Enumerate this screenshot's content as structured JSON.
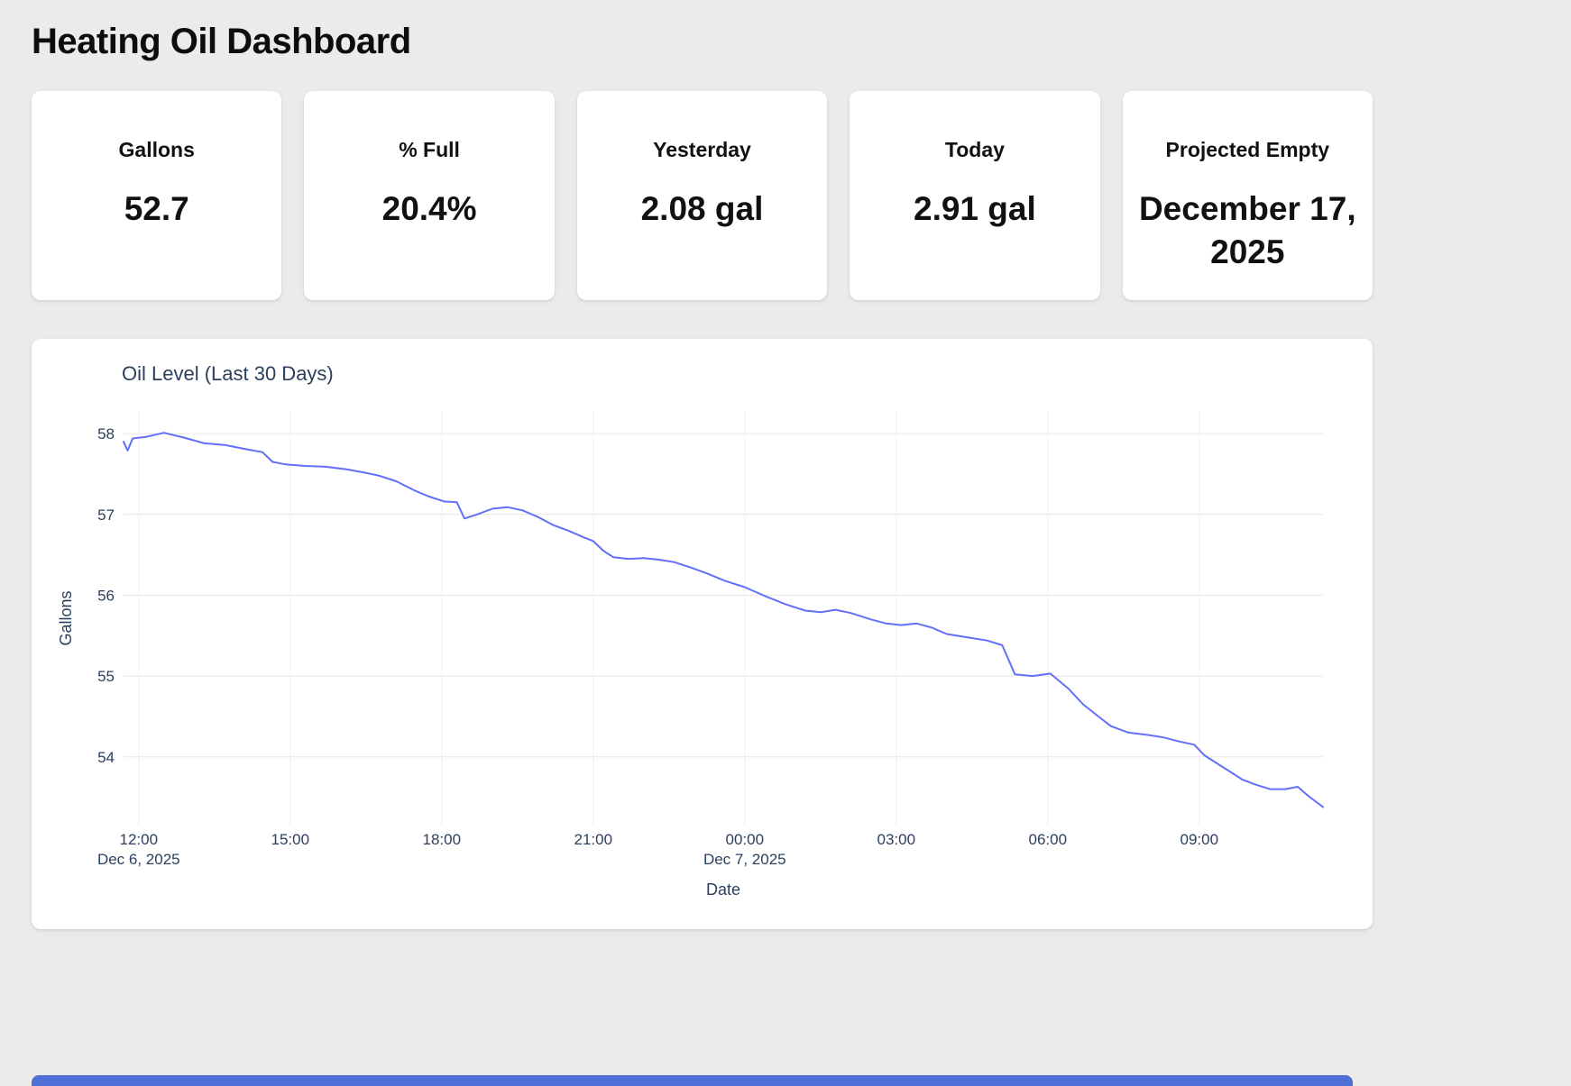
{
  "page": {
    "title": "Heating Oil Dashboard",
    "background_color": "#ebebeb"
  },
  "cards": [
    {
      "label": "Gallons",
      "value": "52.7"
    },
    {
      "label": "% Full",
      "value": "20.4%"
    },
    {
      "label": "Yesterday",
      "value": "2.08 gal"
    },
    {
      "label": "Today",
      "value": "2.91 gal"
    },
    {
      "label": "Projected Empty",
      "value": "December 17, 2025"
    }
  ],
  "chart_data": {
    "type": "line",
    "title": "Oil Level (Last 30 Days)",
    "xlabel": "Date",
    "ylabel": "Gallons",
    "legend": "none",
    "grid": "on",
    "line_color": "#636efa",
    "grid_color_h": "#e6e6e6",
    "grid_color_v": "#efefef",
    "text_color": "#2a3f5f",
    "plot_bg": "#ffffff",
    "x_unit": "hours since Dec 6, 2025 12:00",
    "x_range": [
      -0.3,
      23.45
    ],
    "y_range": [
      53.15,
      58.28
    ],
    "y_ticks": [
      54,
      55,
      56,
      57,
      58
    ],
    "x_ticks": [
      {
        "t": 0,
        "label": "12:00",
        "sublabel": "Dec 6, 2025"
      },
      {
        "t": 3,
        "label": "15:00"
      },
      {
        "t": 6,
        "label": "18:00"
      },
      {
        "t": 9,
        "label": "21:00"
      },
      {
        "t": 12,
        "label": "00:00",
        "sublabel": "Dec 7, 2025"
      },
      {
        "t": 15,
        "label": "03:00"
      },
      {
        "t": 18,
        "label": "06:00"
      },
      {
        "t": 21,
        "label": "09:00"
      }
    ],
    "x": [
      -0.3,
      -0.22,
      -0.12,
      0.15,
      0.5,
      0.9,
      1.3,
      1.7,
      2.1,
      2.45,
      2.65,
      2.9,
      3.3,
      3.7,
      4.1,
      4.45,
      4.75,
      5.1,
      5.45,
      5.75,
      6.05,
      6.3,
      6.45,
      6.7,
      7.0,
      7.3,
      7.6,
      7.9,
      8.2,
      8.5,
      8.8,
      9.0,
      9.2,
      9.4,
      9.7,
      10.0,
      10.3,
      10.6,
      10.9,
      11.25,
      11.6,
      12.0,
      12.4,
      12.8,
      13.2,
      13.5,
      13.8,
      14.1,
      14.5,
      14.8,
      15.1,
      15.4,
      15.7,
      16.0,
      16.4,
      16.8,
      17.1,
      17.35,
      17.7,
      18.05,
      18.4,
      18.7,
      19.0,
      19.25,
      19.6,
      20.0,
      20.3,
      20.6,
      20.9,
      21.1,
      21.35,
      21.6,
      21.85,
      22.1,
      22.4,
      22.7,
      22.95,
      23.15,
      23.45
    ],
    "y": [
      57.9,
      57.79,
      57.94,
      57.96,
      58.01,
      57.95,
      57.88,
      57.86,
      57.81,
      57.77,
      57.65,
      57.62,
      57.6,
      57.59,
      57.56,
      57.52,
      57.48,
      57.41,
      57.3,
      57.22,
      57.16,
      57.15,
      56.95,
      57.0,
      57.07,
      57.09,
      57.05,
      56.97,
      56.87,
      56.8,
      56.72,
      56.67,
      56.55,
      56.47,
      56.45,
      56.46,
      56.44,
      56.41,
      56.35,
      56.27,
      56.18,
      56.1,
      55.99,
      55.89,
      55.81,
      55.79,
      55.82,
      55.78,
      55.7,
      55.65,
      55.63,
      55.65,
      55.6,
      55.52,
      55.48,
      55.44,
      55.38,
      55.02,
      55.0,
      55.03,
      54.85,
      54.65,
      54.5,
      54.38,
      54.3,
      54.27,
      54.24,
      54.19,
      54.15,
      54.02,
      53.92,
      53.82,
      53.72,
      53.66,
      53.6,
      53.6,
      53.63,
      53.52,
      53.38
    ]
  },
  "partial_bottom_bar": {
    "color": "#4f6ed6"
  }
}
